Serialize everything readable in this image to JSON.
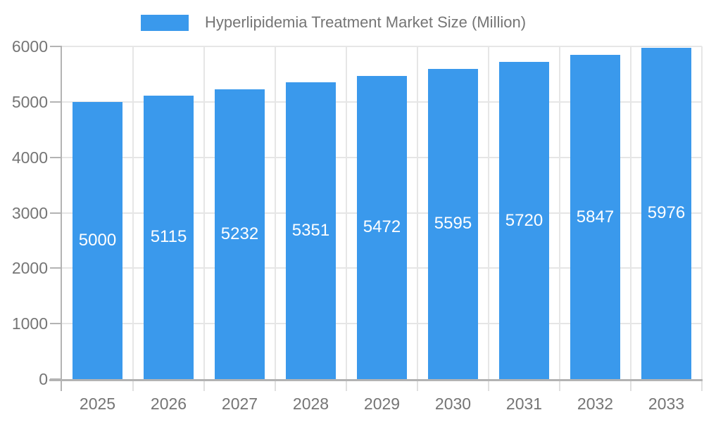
{
  "legend": {
    "label": "Hyperlipidemia Treatment Market Size (Million)"
  },
  "chart_data": {
    "type": "bar",
    "title": "Hyperlipidemia Treatment Market Size (Million)",
    "categories": [
      "2025",
      "2026",
      "2027",
      "2028",
      "2029",
      "2030",
      "2031",
      "2032",
      "2033"
    ],
    "values": [
      5000,
      5115,
      5232,
      5351,
      5472,
      5595,
      5720,
      5847,
      5976
    ],
    "xlabel": "",
    "ylabel": "",
    "ylim": [
      0,
      6000
    ],
    "yticks": [
      0,
      1000,
      2000,
      3000,
      4000,
      5000,
      6000
    ],
    "grid": true,
    "legend_position": "top",
    "value_label_position": "inside-center",
    "colors": {
      "bar": "#3A99EC",
      "grid": "#e6e6e6",
      "axis": "#b3b3b3",
      "minor_tick": "#e0e0e0",
      "text": "#757575",
      "value_label": "#ffffff",
      "background": "#ffffff"
    }
  }
}
